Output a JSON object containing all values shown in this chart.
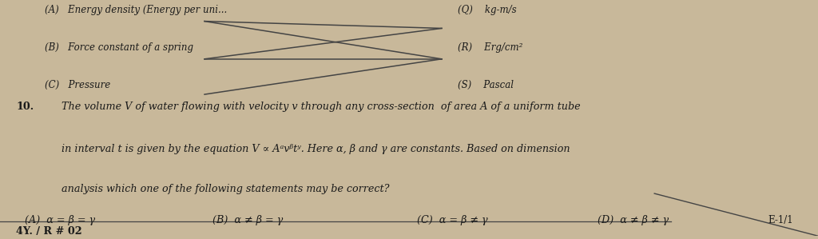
{
  "bg_color": "#c8b89a",
  "paper_color": "#eeeade",
  "title": "10.",
  "question_line1": "The volume V of water flowing with velocity v through any cross-section  of area A of a uniform tube",
  "question_line2": "in interval t is given by the equation V ∝ Aᵃvᵝtʸ. Here α, β and γ are constants. Based on dimension",
  "question_line3": "analysis which one of the following statements may be correct?",
  "opt_A": "(A)  α = β = γ",
  "opt_B": "(B)  α ≠ β = γ",
  "opt_C": "(C)  α = β ≠ γ",
  "opt_D": "(D)  α ≠ β ≠ γ",
  "prev_line1": "    (A)   Energy density (Energy per uni...",
  "prev_line2": "    (B)   Force constant of a spring",
  "prev_line3": "    (C)   Pressure",
  "prev_opt_Q": "(Q)    kg-m/s",
  "prev_opt_R": "(R)    Erg/cm²",
  "prev_opt_S": "(S)    Pascal",
  "code": "E-1/1",
  "footer": "4Y. / R # 02",
  "text_color": "#1a1a1a",
  "line_color": "#444444"
}
